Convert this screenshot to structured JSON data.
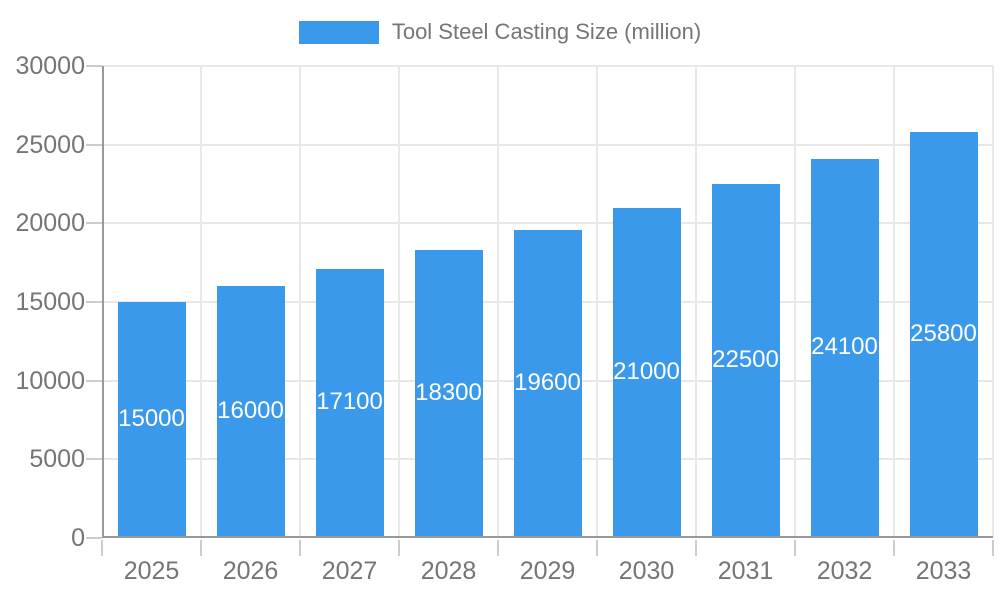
{
  "legend": {
    "label": "Tool Steel Casting Size (million)",
    "swatch_color": "#3b99ec"
  },
  "colors": {
    "bar": "#3b99ec",
    "grid_line": "#e8e8e8",
    "axis_line": "#999999",
    "tick_mark": "#cccccc",
    "tick_label": "#757575",
    "bar_value_label": "#ffffff",
    "background": "#ffffff"
  },
  "chart_data": {
    "type": "bar",
    "title": "Tool Steel Casting Size (million)",
    "series_name": "Tool Steel Casting Size (million)",
    "categories": [
      "2025",
      "2026",
      "2027",
      "2028",
      "2029",
      "2030",
      "2031",
      "2032",
      "2033"
    ],
    "values": [
      15000,
      16000,
      17100,
      18300,
      19600,
      21000,
      22500,
      24100,
      25800
    ],
    "value_labels": [
      "15000",
      "16000",
      "17100",
      "18300",
      "19600",
      "21000",
      "22500",
      "24100",
      "25800"
    ],
    "xlabel": "",
    "ylabel": "",
    "ylim": [
      0,
      30000
    ],
    "yticks": [
      0,
      5000,
      10000,
      15000,
      20000,
      25000,
      30000
    ],
    "ytick_labels": [
      "0",
      "5000",
      "10000",
      "15000",
      "20000",
      "25000",
      "30000"
    ],
    "grid": true,
    "legend_position": "top",
    "value_label_position": "center-inside-bar"
  }
}
